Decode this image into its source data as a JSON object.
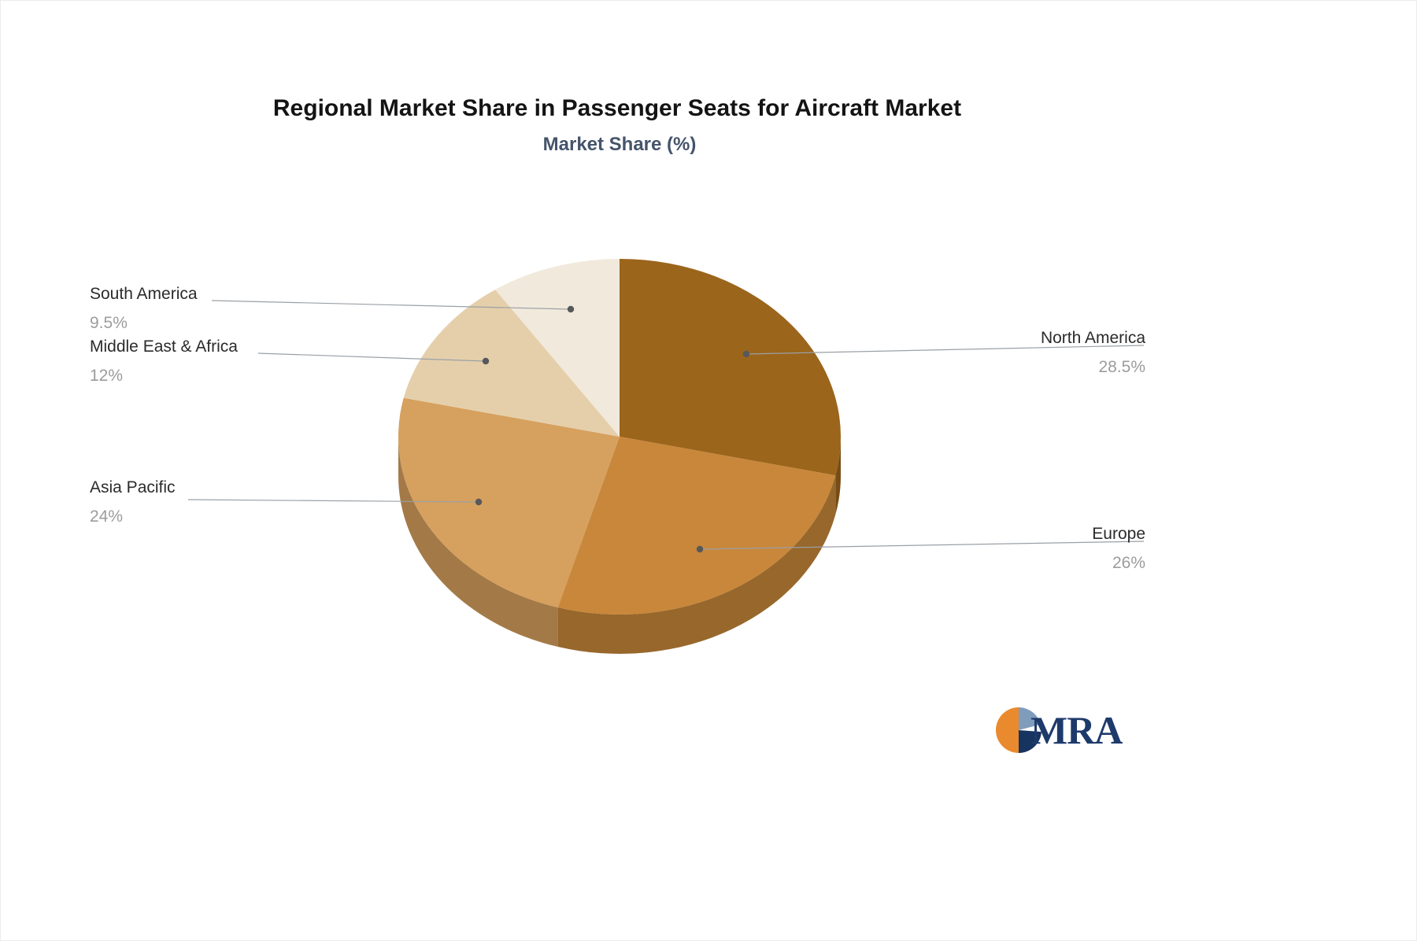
{
  "header": {
    "title": "Regional Market Share in Passenger Seats for Aircraft Market",
    "subtitle": "Market Share (%)"
  },
  "chart_data": {
    "type": "pie",
    "style": "3d",
    "title": "Regional Market Share in Passenger Seats for Aircraft Market",
    "subtitle": "Market Share (%)",
    "unit": "%",
    "total": 100,
    "start_angle_deg": -90,
    "direction": "clockwise",
    "legend_position": "callout-labels",
    "categories": [
      "North America",
      "Europe",
      "Asia Pacific",
      "Middle East & Africa",
      "South America"
    ],
    "values": [
      28.5,
      26,
      24,
      12,
      9.5
    ],
    "value_labels": [
      "28.5%",
      "26%",
      "24%",
      "12%",
      "9.5%"
    ],
    "colors": [
      "#9c651c",
      "#c8873a",
      "#d6a05e",
      "#e5cfab",
      "#f1e9dc"
    ]
  },
  "logo": {
    "text": "MRA",
    "colors": {
      "orange": "#ea8a2e",
      "light_blue": "#7f9cbd",
      "navy": "#16345f",
      "text_navy": "#1e3a6b"
    }
  }
}
